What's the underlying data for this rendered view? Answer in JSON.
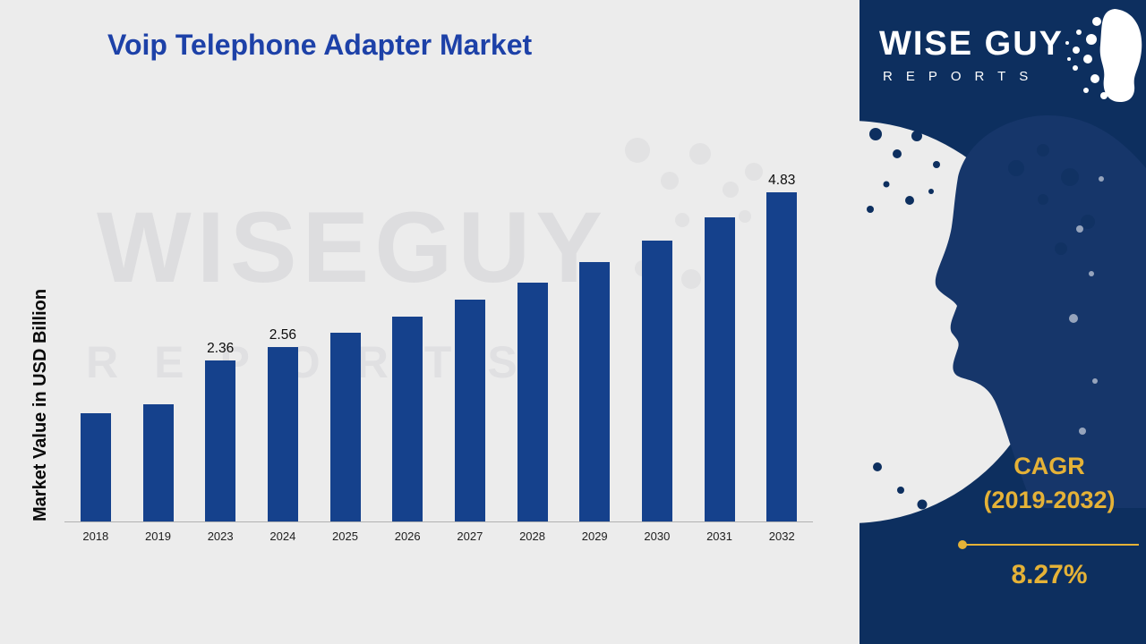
{
  "header": {
    "title": "Voip Telephone Adapter Market"
  },
  "y_axis_label": "Market Value in USD Billion",
  "watermark": {
    "line1": "WISEGUY",
    "line2": "REPORTS"
  },
  "brand": {
    "logo_line1": "WISE GUY",
    "logo_line2": "REPORTS"
  },
  "cagr": {
    "label": "CAGR",
    "range": "(2019-2032)",
    "value": "8.27%"
  },
  "colors": {
    "background": "#ececec",
    "bar": "#15418c",
    "panel": "#0d2f5f",
    "title": "#1d41a8",
    "accent_gold": "#e5b237",
    "axis_text": "#0a0a0a"
  },
  "chart_data": {
    "type": "bar",
    "title": "Voip Telephone Adapter Market",
    "xlabel": "",
    "ylabel": "Market Value in USD Billion",
    "categories": [
      "2018",
      "2019",
      "2023",
      "2024",
      "2025",
      "2026",
      "2027",
      "2028",
      "2029",
      "2030",
      "2031",
      "2032"
    ],
    "values": [
      1.59,
      1.72,
      2.36,
      2.56,
      2.77,
      3.0,
      3.25,
      3.51,
      3.8,
      4.12,
      4.46,
      4.83
    ],
    "data_labels": [
      null,
      null,
      "2.36",
      "2.56",
      null,
      null,
      null,
      null,
      null,
      null,
      null,
      "4.83"
    ],
    "unit": "USD Billion",
    "ylim": [
      0,
      5.2
    ],
    "grid": false,
    "legend": false
  }
}
